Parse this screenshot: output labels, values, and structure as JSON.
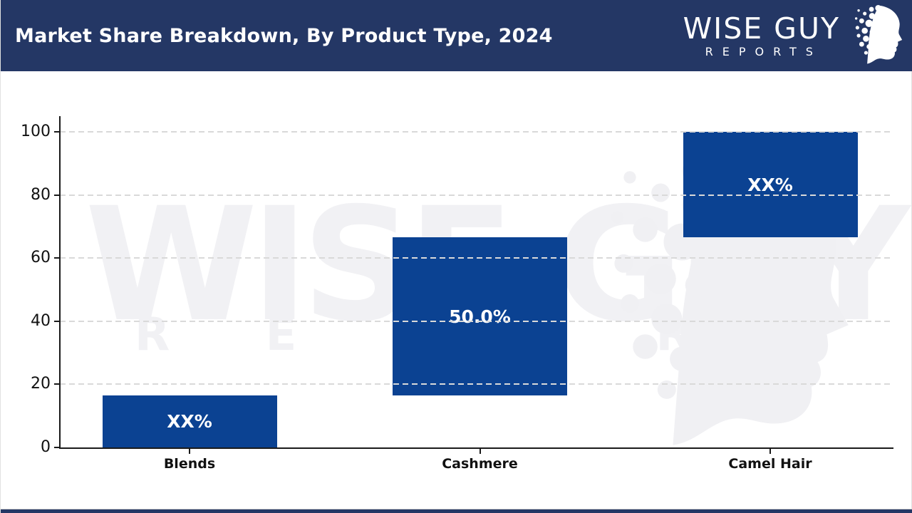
{
  "header": {
    "title": "Market Share Breakdown, By Product Type, 2024",
    "logo": {
      "line1": "WISE GUY",
      "line2": "REPORTS"
    }
  },
  "watermark": {
    "line1": "WISE GUY",
    "line2": "R E P O R T S"
  },
  "colors": {
    "header_bg": "#243765",
    "bar": "#0b4292",
    "gridline": "#d9d9d9",
    "bar_label_text": "#ffffff",
    "axis_text": "#111111"
  },
  "chart_data": {
    "type": "bar",
    "subtype": "waterfall",
    "title": "Market Share Breakdown, By Product Type, 2024",
    "categories": [
      "Blends",
      "Cashmere",
      "Camel Hair"
    ],
    "bars": [
      {
        "category": "Blends",
        "start": 0,
        "end": 16.5,
        "label": "XX%"
      },
      {
        "category": "Cashmere",
        "start": 16.5,
        "end": 66.5,
        "label": "50.0%"
      },
      {
        "category": "Camel Hair",
        "start": 66.5,
        "end": 100,
        "label": "XX%"
      }
    ],
    "xlabel": "",
    "ylabel": "",
    "ylim": [
      0,
      100
    ],
    "yticks": [
      0,
      20,
      40,
      60,
      80,
      100
    ],
    "grid": "dashed horizontal",
    "legend": "none"
  }
}
